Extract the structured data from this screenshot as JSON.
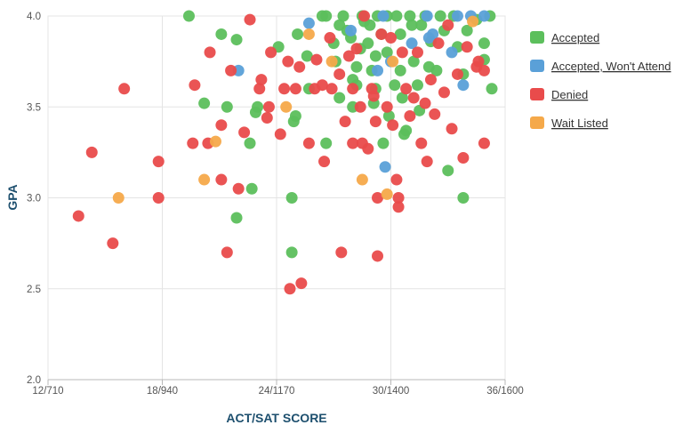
{
  "chart_data": {
    "type": "scatter",
    "xlabel": "ACT/SAT SCORE",
    "ylabel": "GPA",
    "xlim": [
      12,
      36
    ],
    "ylim": [
      2.0,
      4.0
    ],
    "x_ticks": [
      12,
      18,
      24,
      30,
      36
    ],
    "x_tick_labels": [
      "12/710",
      "18/940",
      "24/1170",
      "30/1400",
      "36/1600"
    ],
    "y_ticks": [
      2.0,
      2.5,
      3.0,
      3.5,
      4.0
    ],
    "y_tick_labels": [
      "2.0",
      "2.5",
      "3.0",
      "3.5",
      "4.0"
    ],
    "grid": true,
    "legend_position": "right",
    "series": [
      {
        "name": "Accepted",
        "color": "#5cbf5c",
        "points": [
          [
            19.4,
            4.0
          ],
          [
            21.1,
            3.9
          ],
          [
            21.4,
            3.5
          ],
          [
            20.2,
            3.52
          ],
          [
            21.9,
            3.87
          ],
          [
            22.6,
            3.3
          ],
          [
            21.9,
            2.89
          ],
          [
            22.7,
            3.05
          ],
          [
            22.9,
            3.47
          ],
          [
            23.0,
            3.5
          ],
          [
            24.1,
            3.83
          ],
          [
            24.8,
            3.0
          ],
          [
            24.8,
            2.7
          ],
          [
            25.0,
            3.45
          ],
          [
            24.9,
            3.42
          ],
          [
            25.6,
            3.78
          ],
          [
            25.1,
            3.9
          ],
          [
            25.7,
            3.6
          ],
          [
            26.4,
            4.0
          ],
          [
            26.6,
            4.0
          ],
          [
            26.6,
            3.3
          ],
          [
            27.0,
            3.85
          ],
          [
            27.3,
            3.95
          ],
          [
            27.3,
            3.55
          ],
          [
            27.5,
            4.0
          ],
          [
            27.7,
            3.92
          ],
          [
            27.9,
            3.88
          ],
          [
            28.0,
            3.65
          ],
          [
            28.0,
            3.5
          ],
          [
            28.2,
            3.72
          ],
          [
            28.2,
            3.62
          ],
          [
            28.4,
            3.82
          ],
          [
            28.5,
            4.0
          ],
          [
            28.6,
            3.97
          ],
          [
            28.8,
            3.85
          ],
          [
            29.0,
            3.7
          ],
          [
            29.1,
            3.52
          ],
          [
            29.2,
            3.78
          ],
          [
            29.2,
            3.6
          ],
          [
            29.3,
            4.0
          ],
          [
            29.5,
            3.9
          ],
          [
            29.6,
            3.3
          ],
          [
            29.8,
            4.0
          ],
          [
            29.8,
            3.8
          ],
          [
            29.9,
            3.45
          ],
          [
            30.3,
            4.0
          ],
          [
            30.5,
            3.9
          ],
          [
            30.5,
            3.7
          ],
          [
            30.6,
            3.55
          ],
          [
            30.7,
            3.35
          ],
          [
            30.8,
            3.37
          ],
          [
            31.0,
            4.0
          ],
          [
            31.1,
            3.95
          ],
          [
            31.2,
            3.75
          ],
          [
            31.4,
            3.62
          ],
          [
            31.5,
            3.48
          ],
          [
            31.8,
            4.0
          ],
          [
            32.0,
            3.72
          ],
          [
            32.1,
            3.86
          ],
          [
            32.4,
            3.7
          ],
          [
            32.6,
            4.0
          ],
          [
            32.8,
            3.92
          ],
          [
            33.0,
            3.15
          ],
          [
            33.3,
            4.0
          ],
          [
            33.5,
            3.83
          ],
          [
            33.8,
            3.0
          ],
          [
            33.8,
            3.68
          ],
          [
            34.0,
            3.92
          ],
          [
            34.5,
            3.98
          ],
          [
            34.9,
            3.85
          ],
          [
            34.9,
            3.76
          ],
          [
            35.3,
            3.6
          ],
          [
            35.2,
            4.0
          ],
          [
            27.1,
            3.75
          ],
          [
            28.9,
            3.95
          ],
          [
            30.2,
            3.62
          ],
          [
            31.6,
            3.95
          ]
        ]
      },
      {
        "name": "Accepted, Won't Attend",
        "color": "#5aa0d8",
        "points": [
          [
            22.0,
            3.7
          ],
          [
            25.7,
            3.96
          ],
          [
            27.9,
            3.92
          ],
          [
            29.6,
            4.0
          ],
          [
            29.7,
            3.17
          ],
          [
            30.0,
            3.75
          ],
          [
            31.1,
            3.85
          ],
          [
            31.9,
            4.0
          ],
          [
            32.0,
            3.88
          ],
          [
            32.2,
            3.9
          ],
          [
            33.2,
            3.8
          ],
          [
            33.5,
            4.0
          ],
          [
            33.8,
            3.62
          ],
          [
            34.2,
            4.0
          ],
          [
            34.9,
            4.0
          ],
          [
            29.3,
            3.7
          ]
        ]
      },
      {
        "name": "Denied",
        "color": "#e94b4b",
        "points": [
          [
            13.6,
            2.9
          ],
          [
            14.3,
            3.25
          ],
          [
            15.4,
            2.75
          ],
          [
            16.0,
            3.6
          ],
          [
            17.8,
            3.2
          ],
          [
            17.8,
            3.0
          ],
          [
            19.6,
            3.3
          ],
          [
            19.7,
            3.62
          ],
          [
            20.4,
            3.3
          ],
          [
            20.5,
            3.8
          ],
          [
            21.1,
            3.1
          ],
          [
            21.1,
            3.4
          ],
          [
            21.4,
            2.7
          ],
          [
            21.6,
            3.7
          ],
          [
            22.3,
            3.36
          ],
          [
            22.0,
            3.05
          ],
          [
            22.6,
            3.98
          ],
          [
            23.1,
            3.6
          ],
          [
            23.2,
            3.65
          ],
          [
            23.5,
            3.44
          ],
          [
            23.6,
            3.5
          ],
          [
            23.7,
            3.8
          ],
          [
            24.2,
            3.35
          ],
          [
            24.4,
            3.6
          ],
          [
            24.6,
            3.75
          ],
          [
            24.7,
            2.5
          ],
          [
            25.0,
            3.6
          ],
          [
            25.2,
            3.72
          ],
          [
            25.3,
            2.53
          ],
          [
            25.7,
            3.3
          ],
          [
            26.0,
            3.6
          ],
          [
            26.4,
            3.62
          ],
          [
            26.5,
            3.2
          ],
          [
            26.8,
            3.88
          ],
          [
            26.9,
            3.6
          ],
          [
            27.3,
            3.68
          ],
          [
            27.4,
            2.7
          ],
          [
            27.6,
            3.42
          ],
          [
            27.8,
            3.78
          ],
          [
            28.0,
            3.3
          ],
          [
            28.0,
            3.6
          ],
          [
            28.2,
            3.82
          ],
          [
            28.4,
            3.5
          ],
          [
            28.5,
            3.3
          ],
          [
            28.6,
            4.0
          ],
          [
            28.8,
            3.27
          ],
          [
            29.0,
            3.6
          ],
          [
            29.2,
            3.42
          ],
          [
            29.3,
            2.68
          ],
          [
            29.3,
            3.0
          ],
          [
            29.5,
            3.9
          ],
          [
            29.8,
            3.5
          ],
          [
            30.0,
            3.88
          ],
          [
            30.1,
            3.4
          ],
          [
            30.3,
            3.1
          ],
          [
            30.4,
            3.0
          ],
          [
            30.4,
            2.95
          ],
          [
            30.6,
            3.8
          ],
          [
            30.8,
            3.6
          ],
          [
            31.0,
            3.45
          ],
          [
            31.2,
            3.55
          ],
          [
            31.4,
            3.8
          ],
          [
            31.6,
            3.3
          ],
          [
            31.8,
            3.52
          ],
          [
            31.9,
            3.2
          ],
          [
            32.1,
            3.65
          ],
          [
            32.3,
            3.46
          ],
          [
            32.5,
            3.85
          ],
          [
            32.8,
            3.58
          ],
          [
            33.0,
            3.95
          ],
          [
            33.2,
            3.38
          ],
          [
            33.5,
            3.68
          ],
          [
            33.8,
            3.22
          ],
          [
            34.0,
            3.83
          ],
          [
            34.6,
            3.75
          ],
          [
            34.9,
            3.7
          ],
          [
            34.9,
            3.3
          ],
          [
            34.5,
            3.72
          ],
          [
            29.1,
            3.56
          ],
          [
            26.1,
            3.76
          ]
        ]
      },
      {
        "name": "Wait Listed",
        "color": "#f5a94a",
        "points": [
          [
            15.7,
            3.0
          ],
          [
            20.2,
            3.1
          ],
          [
            20.8,
            3.31
          ],
          [
            24.5,
            3.5
          ],
          [
            25.7,
            3.9
          ],
          [
            26.9,
            3.75
          ],
          [
            28.5,
            3.1
          ],
          [
            29.8,
            3.02
          ],
          [
            30.1,
            3.75
          ],
          [
            34.3,
            3.97
          ]
        ]
      }
    ]
  }
}
